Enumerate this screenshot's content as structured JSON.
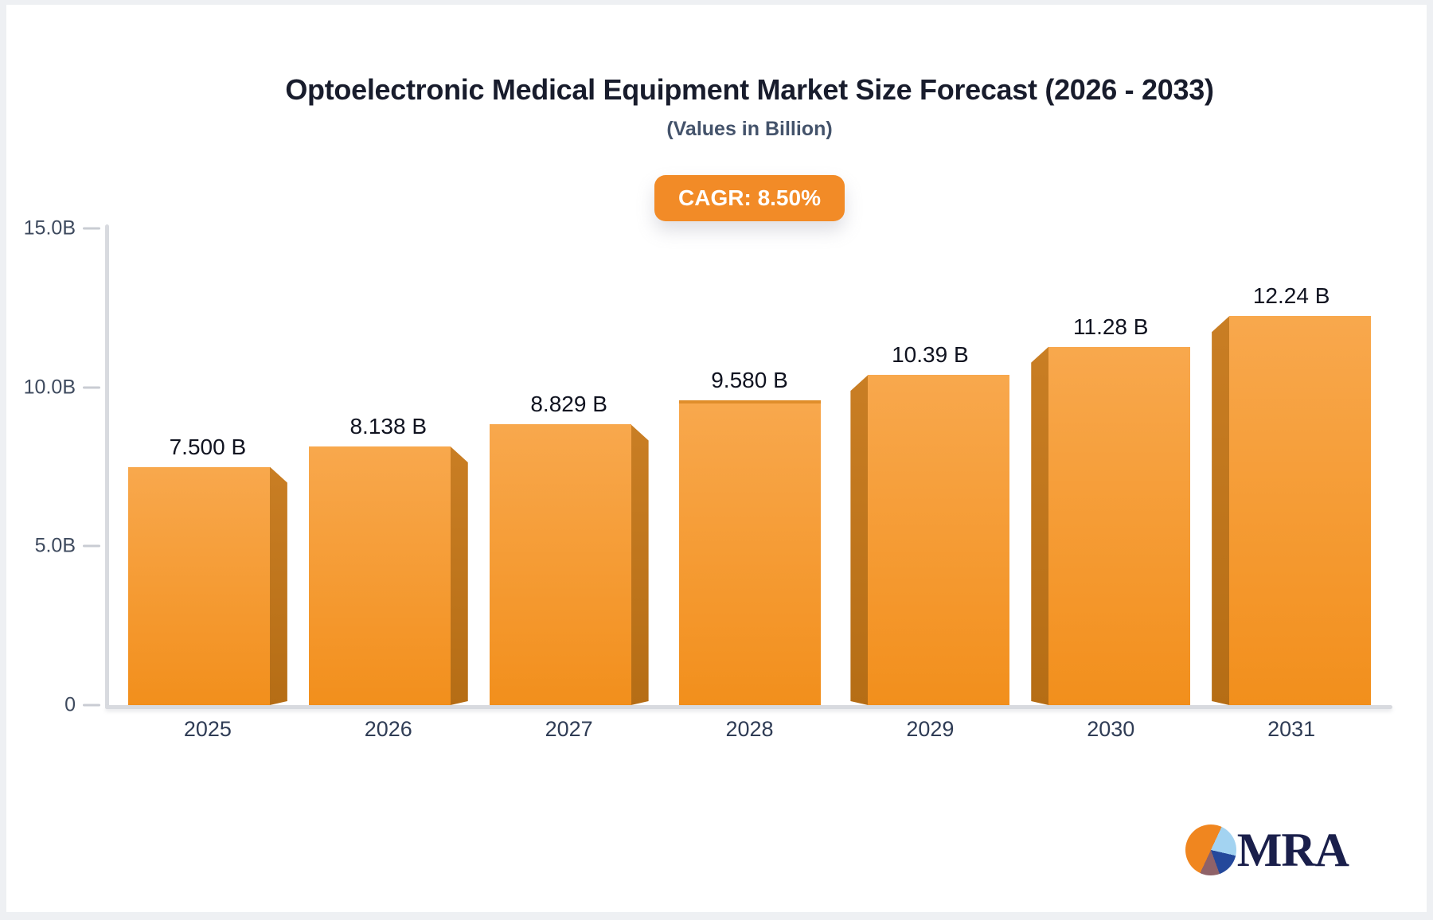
{
  "header": {
    "title": "Optoelectronic Medical Equipment Market Size Forecast (2026 - 2033)",
    "subtitle": "(Values in Billion)"
  },
  "badge": {
    "label": "CAGR: 8.50%",
    "bg_color": "#F28B27"
  },
  "chart_data": {
    "type": "bar",
    "title": "Optoelectronic Medical Equipment Market Size Forecast (2026 - 2033)",
    "subtitle": "(Values in Billion)",
    "cagr": "8.50%",
    "categories": [
      "2025",
      "2026",
      "2027",
      "2028",
      "2029",
      "2030",
      "2031"
    ],
    "values": [
      7.5,
      8.138,
      8.829,
      9.58,
      10.39,
      11.28,
      12.24
    ],
    "value_labels": [
      "7.500 B",
      "8.138 B",
      "8.829 B",
      "9.580 B",
      "10.39 B",
      "11.28 B",
      "12.24 B"
    ],
    "ylim": [
      0,
      15
    ],
    "y_ticks": [
      {
        "value": 15,
        "label": "15.0B"
      },
      {
        "value": 10,
        "label": "10.0B"
      },
      {
        "value": 5,
        "label": "5.0B"
      },
      {
        "value": 0,
        "label": "0"
      }
    ],
    "grid": false,
    "legend": false,
    "bar_style": "3d-perspective-toward-center",
    "colors": {
      "bar_top": "#F8A84D",
      "bar_bottom": "#F28F1C",
      "bar_side": "#BE741F",
      "axis": "#D8DADF",
      "tick_label": "#3E4A5E",
      "value_label": "#101320",
      "badge_bg": "#F28B27"
    }
  },
  "logo": {
    "text": "MRA",
    "pie_colors": {
      "orange": "#F0861F",
      "light_blue": "#A3D3F1",
      "blue": "#24489B",
      "maroon": "#8F6268"
    }
  }
}
